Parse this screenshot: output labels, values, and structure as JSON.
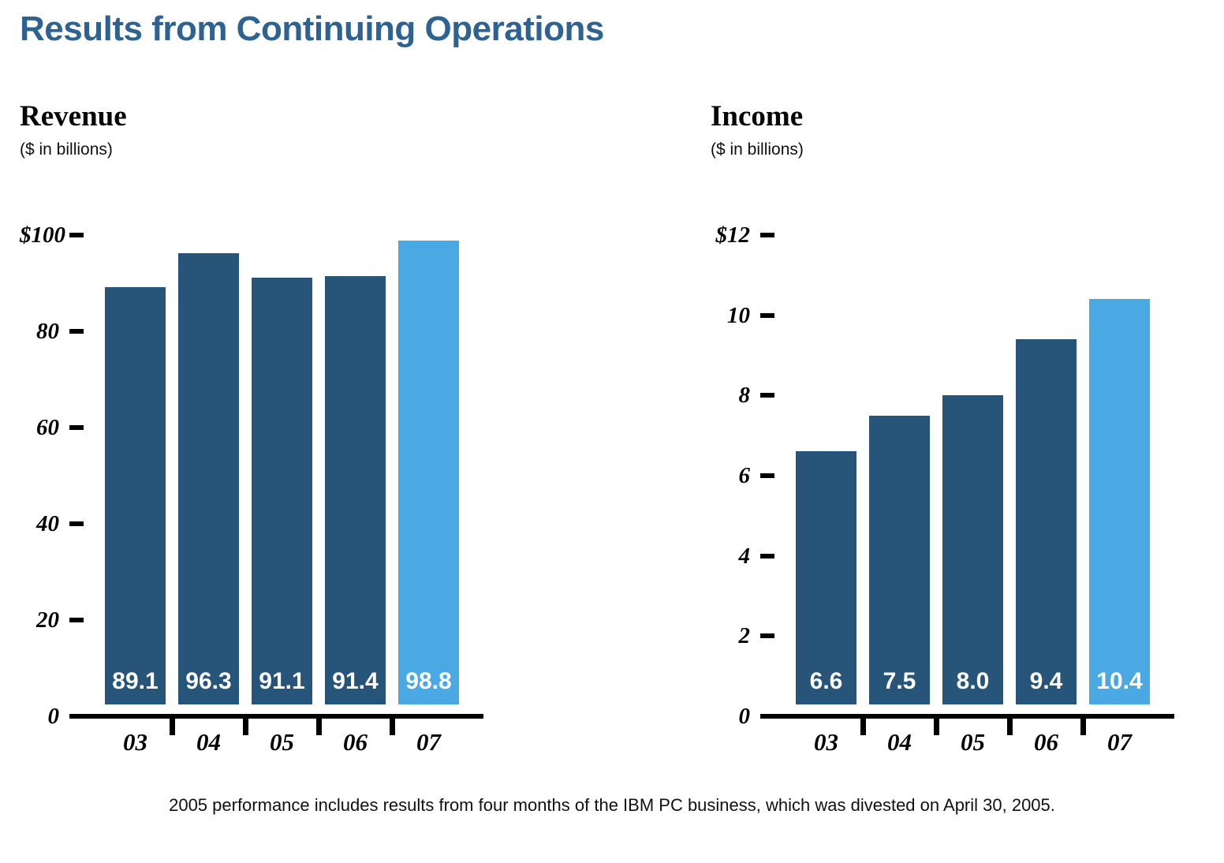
{
  "page": {
    "title": "Results from Continuing Operations",
    "footnote": "2005 performance includes results from four months of the IBM PC business, which was divested on April 30, 2005."
  },
  "colors": {
    "title_blue": "#2d6291",
    "bar_dark": "#275479",
    "bar_highlight": "#4aa9e3",
    "axis_black": "#000000",
    "bar_value_text": "#ffffff"
  },
  "chart_data": [
    {
      "type": "bar",
      "title": "Revenue",
      "subtitle": "($ in billions)",
      "categories": [
        "03",
        "04",
        "05",
        "06",
        "07"
      ],
      "values": [
        89.1,
        96.3,
        91.1,
        91.4,
        98.8
      ],
      "value_labels": [
        "89.1",
        "96.3",
        "91.1",
        "91.4",
        "98.8"
      ],
      "ylim": [
        0,
        100
      ],
      "ytick_values": [
        100,
        80,
        60,
        40,
        20,
        0
      ],
      "ytick_labels": [
        "$100",
        "80",
        "60",
        "40",
        "20",
        "0"
      ],
      "highlight_index": 4,
      "grid": false,
      "legend": false
    },
    {
      "type": "bar",
      "title": "Income",
      "subtitle": "($ in billions)",
      "categories": [
        "03",
        "04",
        "05",
        "06",
        "07"
      ],
      "values": [
        6.6,
        7.5,
        8.0,
        9.4,
        10.4
      ],
      "value_labels": [
        "6.6",
        "7.5",
        "8.0",
        "9.4",
        "10.4"
      ],
      "ylim": [
        0,
        12
      ],
      "ytick_values": [
        12,
        10,
        8,
        6,
        4,
        2,
        0
      ],
      "ytick_labels": [
        "$12",
        "10",
        "8",
        "6",
        "4",
        "2",
        "0"
      ],
      "highlight_index": 4,
      "grid": false,
      "legend": false
    }
  ]
}
